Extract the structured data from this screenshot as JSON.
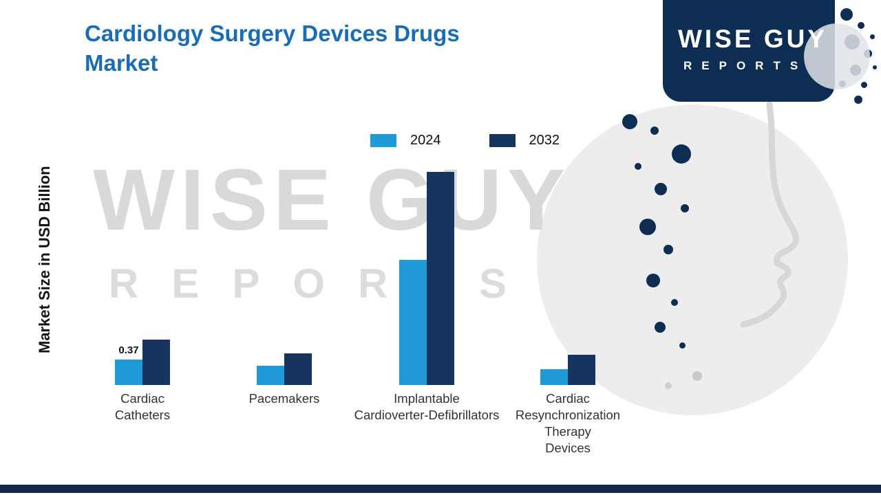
{
  "title": "Cardiology Surgery Devices Drugs Market",
  "watermark": {
    "line1": "WISE GUY",
    "line2": "REPORTS"
  },
  "logo": {
    "line1": "WISE GUY",
    "line2": "REPORTS"
  },
  "legend": [
    {
      "label": "2024",
      "color": "#1f9ad6"
    },
    {
      "label": "2032",
      "color": "#16355e"
    }
  ],
  "colors": {
    "title": "#1a6db5",
    "bar_2024": "#1f9ad6",
    "bar_2032": "#16355e",
    "footer_strip": "#12294a",
    "logo_background": "#0d2d52",
    "watermark": "#dadada"
  },
  "chart_data": {
    "type": "bar",
    "title": "Cardiology Surgery Devices Drugs Market",
    "ylabel": "Market Size in USD Billion",
    "xlabel": "",
    "ylim": [
      0,
      3.5
    ],
    "grid": false,
    "legend_position": "top",
    "categories": [
      "Cardiac Catheters",
      "Pacemakers",
      "Implantable Cardioverter-Defibrillators",
      "Cardiac Resynchronization Therapy Devices"
    ],
    "category_lines": [
      [
        "Cardiac",
        "Catheters"
      ],
      [
        "Pacemakers"
      ],
      [
        "Implantable",
        "Cardioverter-Defibrillators"
      ],
      [
        "Cardiac",
        "Resynchronization",
        "Therapy",
        "Devices"
      ]
    ],
    "series": [
      {
        "name": "2024",
        "color": "#1f9ad6",
        "values": [
          0.37,
          0.28,
          1.82,
          0.23
        ]
      },
      {
        "name": "2032",
        "color": "#16355e",
        "values": [
          0.66,
          0.46,
          3.1,
          0.44
        ]
      }
    ],
    "value_label": {
      "text": "0.37",
      "series_index": 0,
      "category_index": 0
    }
  }
}
